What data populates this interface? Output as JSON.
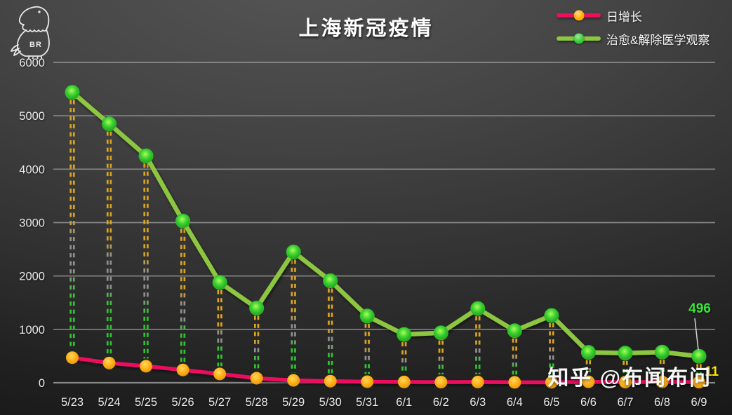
{
  "logo": {
    "text": "BR"
  },
  "title": "上海新冠疫情",
  "legend": [
    {
      "label": "日增长",
      "line_color": "#ed0e5e",
      "marker_color": "#ffae00"
    },
    {
      "label": "治愈&解除医学观察",
      "line_color": "#8dc63f",
      "marker_color": "#33cc33"
    }
  ],
  "watermark": "知乎 @布闻布问",
  "chart_data": {
    "type": "line",
    "title": "上海新冠疫情",
    "categories": [
      "5/23",
      "5/24",
      "5/25",
      "5/26",
      "5/27",
      "5/28",
      "5/29",
      "5/30",
      "5/31",
      "6/1",
      "6/2",
      "6/3",
      "6/4",
      "6/5",
      "6/6",
      "6/7",
      "6/8",
      "6/9"
    ],
    "series": [
      {
        "name": "日增长",
        "color": "#ed0e5e",
        "marker_color": "#ffae00",
        "values": [
          470,
          370,
          310,
          240,
          165,
          85,
          45,
          30,
          20,
          15,
          12,
          14,
          8,
          9,
          18,
          12,
          16,
          11
        ]
      },
      {
        "name": "治愈&解除医学观察",
        "color": "#8dc63f",
        "marker_color": "#33cc33",
        "values": [
          5440,
          4850,
          4250,
          3030,
          1880,
          1400,
          2450,
          1910,
          1250,
          905,
          935,
          1390,
          975,
          1260,
          570,
          555,
          575,
          496
        ]
      }
    ],
    "annotations": [
      {
        "text": "496",
        "color": "#3be33b",
        "series_index": 1,
        "point_index": 17,
        "placement": "above"
      },
      {
        "text": "11",
        "color": "#ffe400",
        "series_index": 0,
        "point_index": 17,
        "placement": "right"
      }
    ],
    "ylim": [
      0,
      6000
    ],
    "yticks": [
      0,
      1000,
      2000,
      3000,
      4000,
      5000,
      6000
    ],
    "grid": true,
    "legend_position": "top-right",
    "drop_lines": {
      "enabled": true,
      "colors": [
        "#d9a41f",
        "#8f8f8f",
        "#2fc42f"
      ],
      "style": "dashed-double"
    }
  }
}
